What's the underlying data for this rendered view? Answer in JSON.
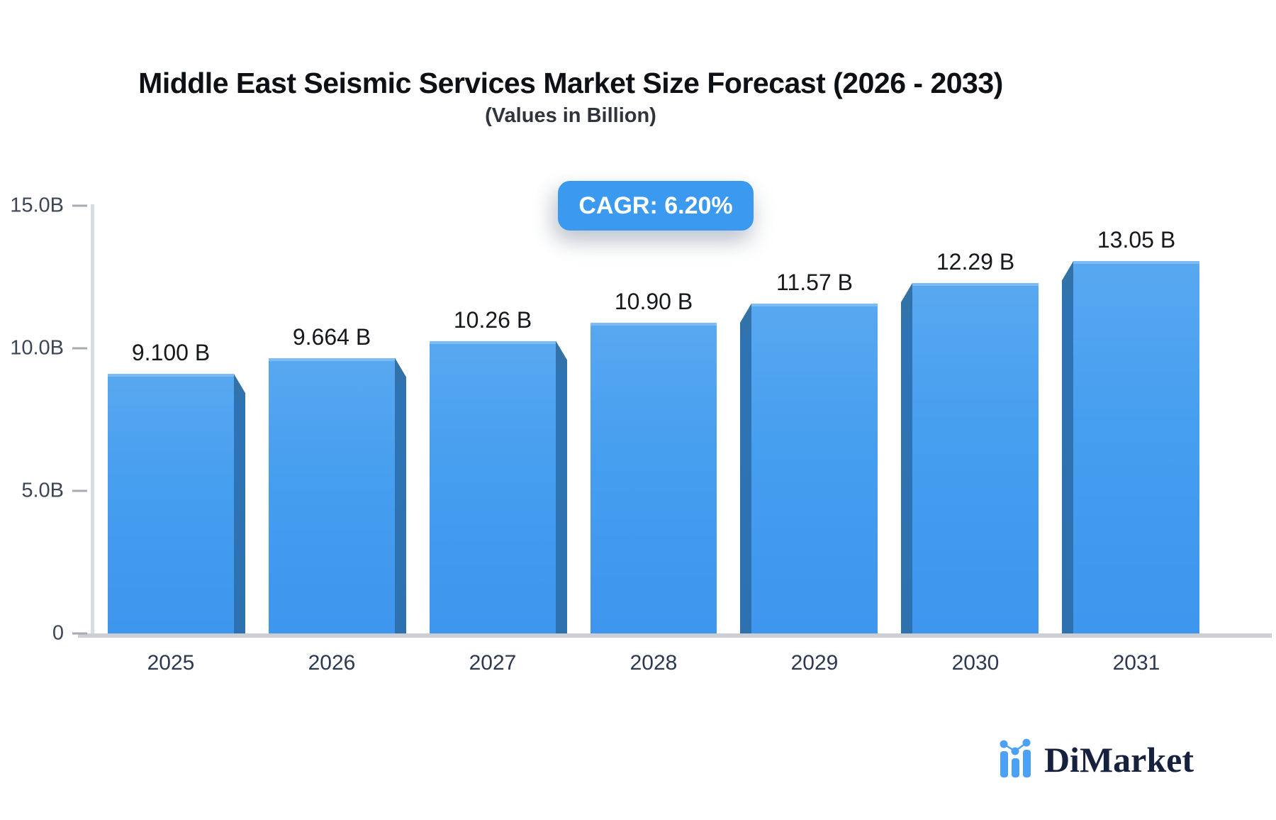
{
  "title": "Middle East Seismic Services Market Size Forecast (2026 - 2033)",
  "subtitle": "(Values in Billion)",
  "badge": {
    "label": "CAGR: 6.20%"
  },
  "brand": {
    "name": "DiMarket",
    "icon": "mini-bar-chart-logo-icon"
  },
  "colors": {
    "bar_face_top": "#58a8f0",
    "bar_face_bottom": "#3e96ee",
    "bar_side": "#2e74b4",
    "badge_blue": "#3b9af0",
    "axis_gray": "#d7dbdf",
    "baseline_gray": "#cbcfd3",
    "logo_blue": "#4aa1f5",
    "logo_navy": "#15213d"
  },
  "chart_data": {
    "type": "bar",
    "title": "Middle East Seismic Services Market Size Forecast (2026 - 2033)",
    "subtitle": "(Values in Billion)",
    "cagr": "6.20%",
    "categories": [
      "2025",
      "2026",
      "2027",
      "2028",
      "2029",
      "2030",
      "2031"
    ],
    "values": [
      9.1,
      9.664,
      10.26,
      10.9,
      11.57,
      12.29,
      13.05
    ],
    "value_labels": [
      "9.100 B",
      "9.664 B",
      "10.26 B",
      "10.90 B",
      "11.57 B",
      "12.29 B",
      "13.05 B"
    ],
    "xlabel": "",
    "ylabel": "",
    "ylim": [
      0,
      15
    ],
    "yticks": [
      {
        "value": 0,
        "label": "0"
      },
      {
        "value": 5,
        "label": "5.0B"
      },
      {
        "value": 10,
        "label": "10.0B"
      },
      {
        "value": 15,
        "label": "15.0B"
      }
    ],
    "grid": false,
    "legend": "none",
    "style": "3d-extruded-bars, perspective toward center"
  }
}
